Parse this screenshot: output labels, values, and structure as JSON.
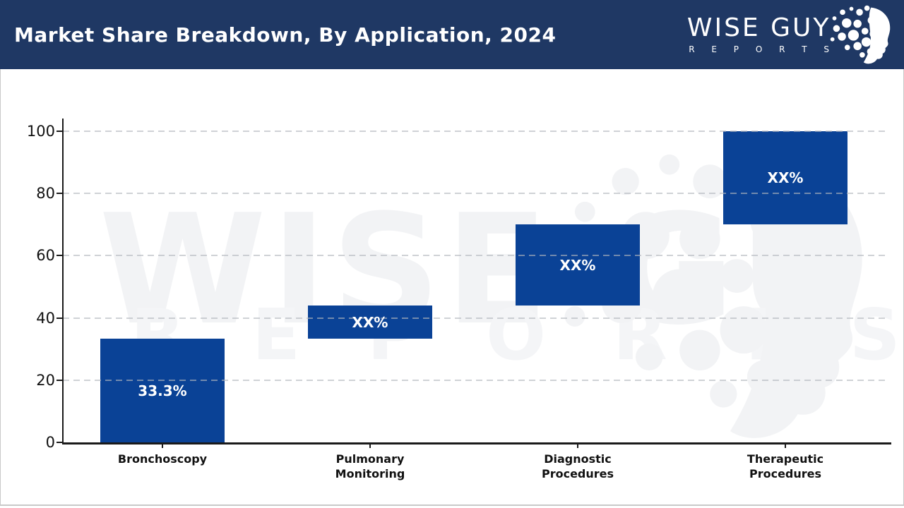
{
  "header": {
    "title": "Market Share Breakdown, By Application, 2024",
    "bg_color": "#1f3864",
    "logo": {
      "line1": "WISE GUY",
      "line2": "R E P O R T S",
      "icon": "dotted-face-profile"
    }
  },
  "watermark": {
    "line1": "WISE GU",
    "line2": "R E P O R T S",
    "icon": "dotted-face-profile"
  },
  "chart_data": {
    "type": "bar",
    "subtype": "waterfall",
    "title": "",
    "xlabel": "",
    "ylabel": "",
    "ylim": [
      0,
      100
    ],
    "y_ticks": [
      0,
      20,
      40,
      60,
      80,
      100
    ],
    "grid": "dashed-horizontal-over-bars",
    "bar_color": "#0a4296",
    "categories": [
      "Bronchoscopy",
      "Pulmonary\nMonitoring",
      "Diagnostic\nProcedures",
      "Therapeutic\nProcedures"
    ],
    "segments": [
      {
        "category": "Bronchoscopy",
        "start": 0,
        "end": 33.3,
        "label": "33.3%"
      },
      {
        "category": "Pulmonary Monitoring",
        "start": 33.3,
        "end": 44,
        "label": "XX%"
      },
      {
        "category": "Diagnostic Procedures",
        "start": 44,
        "end": 70,
        "label": "XX%"
      },
      {
        "category": "Therapeutic Procedures",
        "start": 70,
        "end": 100,
        "label": "XX%"
      }
    ]
  }
}
